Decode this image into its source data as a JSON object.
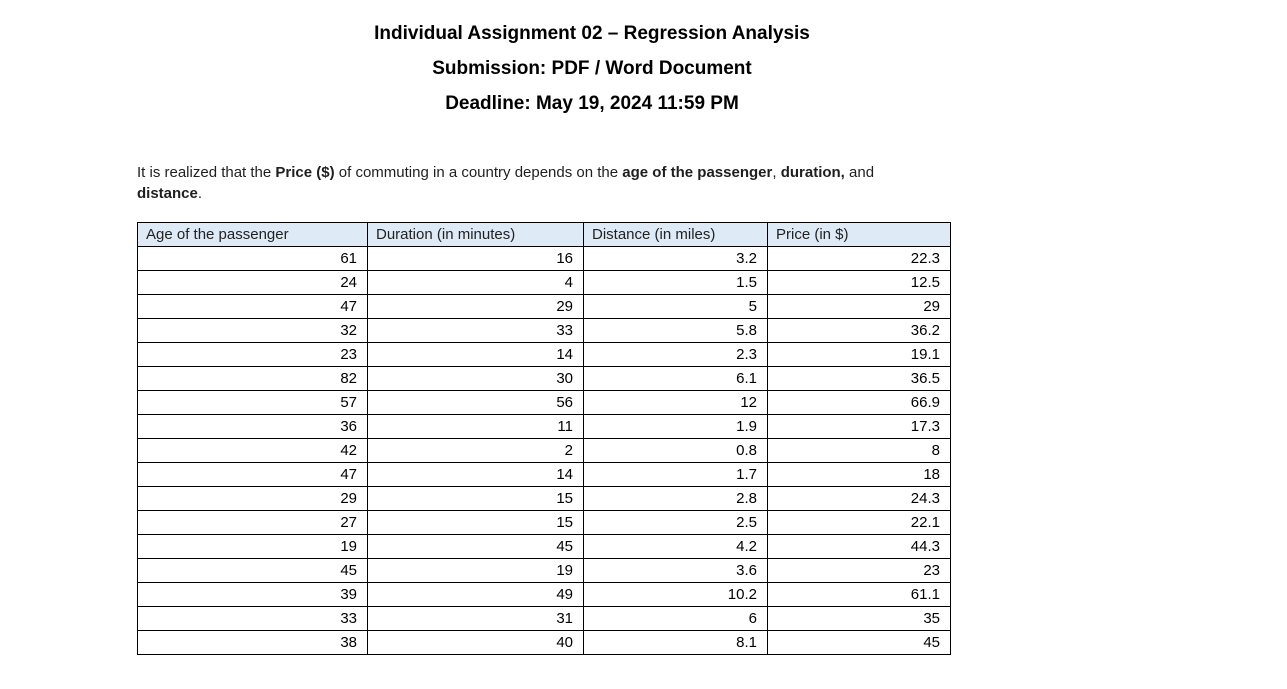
{
  "document": {
    "title_lines": [
      "Individual Assignment 02 – Regression Analysis",
      "Submission: PDF / Word Document",
      "Deadline: May 19, 2024 11:59 PM"
    ]
  },
  "intro": {
    "segments": [
      {
        "text": "It is realized that the ",
        "bold": false,
        "newline_before": false
      },
      {
        "text": "Price ($)",
        "bold": true,
        "newline_before": false
      },
      {
        "text": " of commuting in a country depends on the ",
        "bold": false,
        "newline_before": false
      },
      {
        "text": "age of the passenger",
        "bold": true,
        "newline_before": false
      },
      {
        "text": ", ",
        "bold": false,
        "newline_before": false
      },
      {
        "text": "duration,",
        "bold": true,
        "newline_before": false
      },
      {
        "text": " and ",
        "bold": false,
        "newline_before": false
      },
      {
        "text": "distance",
        "bold": true,
        "newline_before": true
      },
      {
        "text": ".",
        "bold": false,
        "newline_before": false
      }
    ]
  },
  "table": {
    "headers": [
      "Age of the passenger",
      "Duration (in minutes)",
      "Distance (in miles)",
      "Price (in $)"
    ],
    "rows": [
      [
        "61",
        "16",
        "3.2",
        "22.3"
      ],
      [
        "24",
        "4",
        "1.5",
        "12.5"
      ],
      [
        "47",
        "29",
        "5",
        "29"
      ],
      [
        "32",
        "33",
        "5.8",
        "36.2"
      ],
      [
        "23",
        "14",
        "2.3",
        "19.1"
      ],
      [
        "82",
        "30",
        "6.1",
        "36.5"
      ],
      [
        "57",
        "56",
        "12",
        "66.9"
      ],
      [
        "36",
        "11",
        "1.9",
        "17.3"
      ],
      [
        "42",
        "2",
        "0.8",
        "8"
      ],
      [
        "47",
        "14",
        "1.7",
        "18"
      ],
      [
        "29",
        "15",
        "2.8",
        "24.3"
      ],
      [
        "27",
        "15",
        "2.5",
        "22.1"
      ],
      [
        "19",
        "45",
        "4.2",
        "44.3"
      ],
      [
        "45",
        "19",
        "3.6",
        "23"
      ],
      [
        "39",
        "49",
        "10.2",
        "61.1"
      ],
      [
        "33",
        "31",
        "6",
        "35"
      ],
      [
        "38",
        "40",
        "8.1",
        "45"
      ]
    ],
    "header_bg": "#DEEAF6",
    "border_color": "#000000"
  }
}
